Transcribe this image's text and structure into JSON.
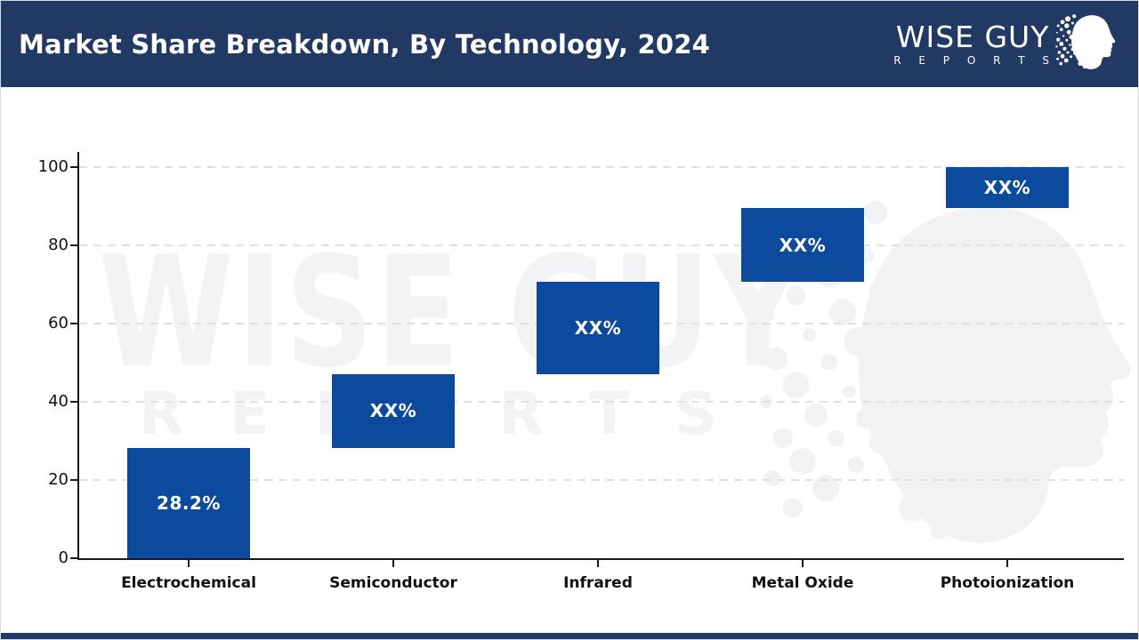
{
  "header": {
    "title": "Market Share Breakdown, By Technology, 2024",
    "logo": {
      "wordmark": "WISE GUY",
      "subtext": "R E P O R T S"
    }
  },
  "watermark": {
    "line1": "WISE GUY",
    "line2": "R E P O R T S"
  },
  "colors": {
    "header_bg": "#223a63",
    "footer_bg": "#223a63",
    "bar": "#0c4a9e",
    "bar_label": "#ffffff",
    "axis": "#1a1a1a",
    "gridline": "#e1e1e1",
    "watermark": "#f2f3f5"
  },
  "chart_data": {
    "type": "bar",
    "subtype": "waterfall-floating-bars",
    "title": "Market Share Breakdown, By Technology, 2024",
    "categories": [
      "Electrochemical",
      "Semiconductor",
      "Infrared",
      "Metal Oxide",
      "Photoionization"
    ],
    "bars": [
      {
        "category": "Electrochemical",
        "start": 0,
        "end": 28.2,
        "label": "28.2%"
      },
      {
        "category": "Semiconductor",
        "start": 28.2,
        "end": 47,
        "label": "XX%"
      },
      {
        "category": "Infrared",
        "start": 47,
        "end": 70.5,
        "label": "XX%"
      },
      {
        "category": "Metal Oxide",
        "start": 70.5,
        "end": 89.5,
        "label": "XX%"
      },
      {
        "category": "Photoionization",
        "start": 89.5,
        "end": 100,
        "label": "XX%"
      }
    ],
    "yticks": [
      0,
      20,
      40,
      60,
      80,
      100
    ],
    "ylim": [
      0,
      104
    ],
    "xlabel": "",
    "ylabel": "",
    "grid": "horizontal-dashed",
    "legend": "none",
    "bar_color": "#0c4a9e"
  }
}
